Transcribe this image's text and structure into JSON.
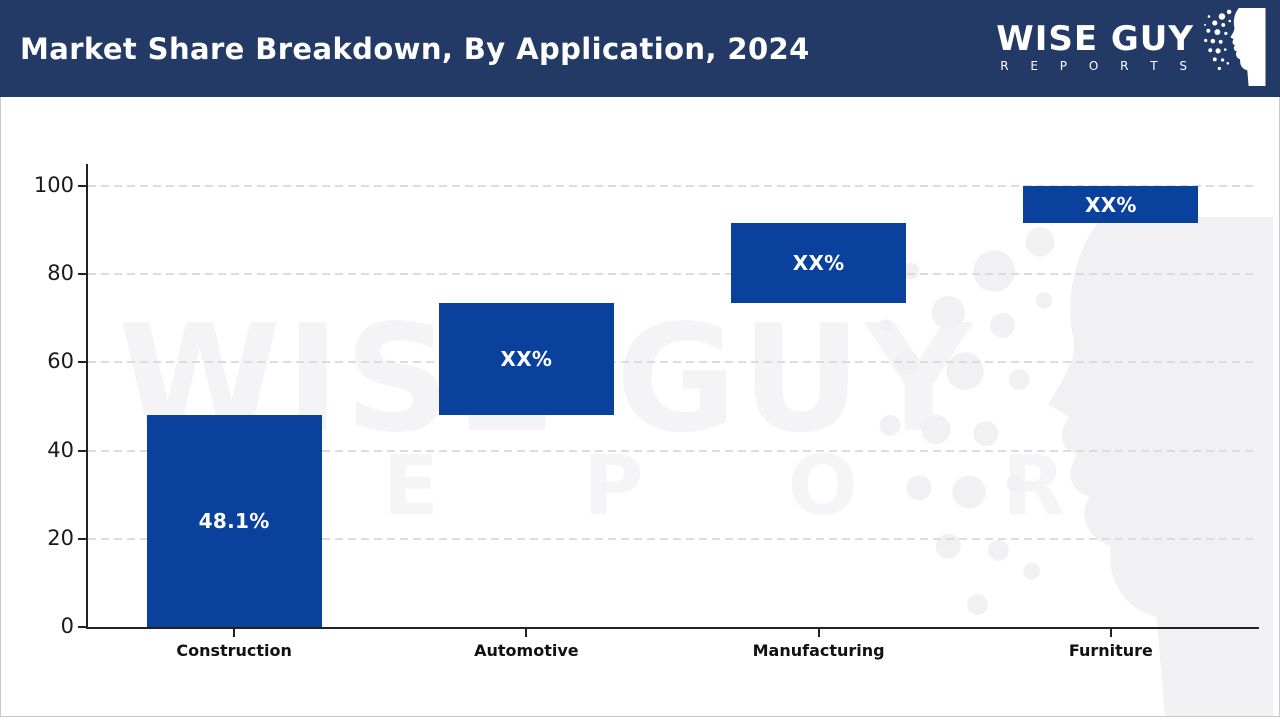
{
  "colors": {
    "header_bg": "#223a65",
    "bar": "#09419d",
    "grid": "#dcdcdc",
    "axis": "#222222",
    "bar_label": "#ffffff",
    "watermark": "#f4f4f6"
  },
  "header": {
    "title": "Market Share Breakdown, By Application, 2024",
    "logo": {
      "line1": "WISE GUY",
      "line2": "R E P O R T S"
    }
  },
  "watermark": {
    "line1": "WISE GUY",
    "line2": "R E P O R T S"
  },
  "chart_data": {
    "type": "bar",
    "subtype": "waterfall",
    "title": "Market Share Breakdown, By Application, 2024",
    "categories": [
      "Construction",
      "Automotive",
      "Manufacturing",
      "Furniture"
    ],
    "segments": [
      {
        "category": "Construction",
        "start": 0,
        "end": 48.1,
        "label": "48.1%"
      },
      {
        "category": "Automotive",
        "start": 48.1,
        "end": 73.5,
        "label": "XX%"
      },
      {
        "category": "Manufacturing",
        "start": 73.5,
        "end": 91.5,
        "label": "XX%"
      },
      {
        "category": "Furniture",
        "start": 91.5,
        "end": 100,
        "label": "XX%"
      }
    ],
    "ylabel": "",
    "xlabel": "",
    "ylim": [
      0,
      100
    ],
    "yticks": [
      0,
      20,
      40,
      60,
      80,
      100
    ],
    "grid": "horizontal-dashed",
    "legend": "none"
  }
}
